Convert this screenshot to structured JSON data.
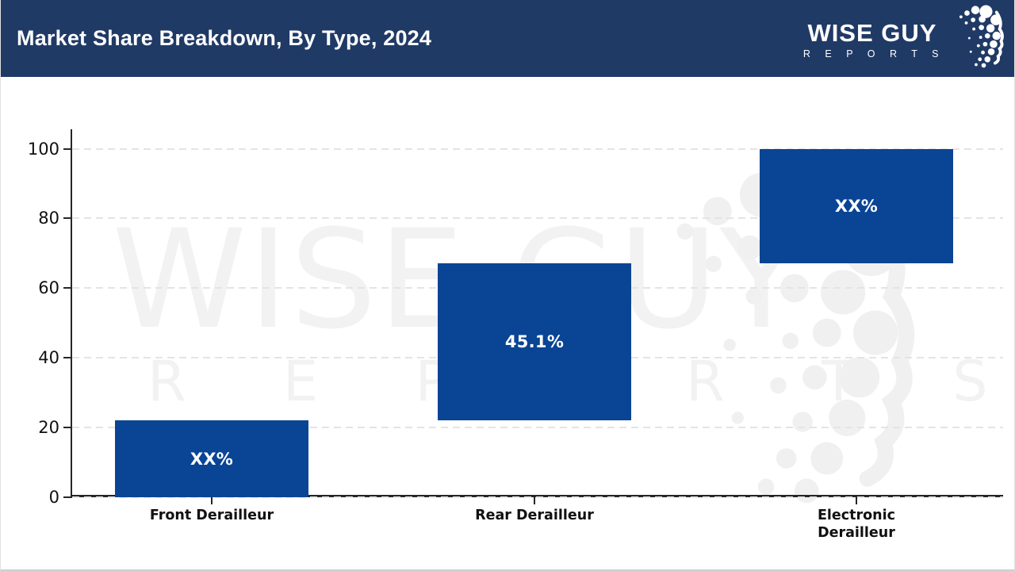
{
  "header": {
    "title": "Market Share Breakdown, By Type, 2024",
    "logo": {
      "name": "WISE GUY",
      "sub": "R E P O R T S"
    }
  },
  "watermark": {
    "line1": "WISE GUY",
    "line2": "R E P O R T S"
  },
  "chart_data": {
    "type": "bar",
    "variant": "stacked-waterfall-floating-bars",
    "title": "Market Share Breakdown, By Type, 2024",
    "categories": [
      "Front Derailleur",
      "Rear Derailleur",
      "Electronic\nDerailleur"
    ],
    "segments": [
      {
        "category": "Front Derailleur",
        "start": 0,
        "end": 22,
        "label": "XX%"
      },
      {
        "category": "Rear Derailleur",
        "start": 22,
        "end": 67.1,
        "label": "45.1%"
      },
      {
        "category": "Electronic Derailleur",
        "start": 67.1,
        "end": 100,
        "label": "XX%"
      }
    ],
    "values": [
      22,
      45.1,
      32.9
    ],
    "yticks": [
      0,
      20,
      40,
      60,
      80,
      100
    ],
    "ylim": [
      0,
      105.6
    ],
    "xlabel": "",
    "ylabel": "",
    "grid": "horizontal-dashed",
    "legend": "none",
    "bar_color": "#0a4494",
    "bar_label_color": "#ffffff",
    "axis_color": "#262626",
    "grid_color": "#e4e4e4"
  },
  "colors": {
    "header_bg": "#203a66",
    "header_text": "#ffffff",
    "bar": "#0a4494",
    "watermark": "#f2f2f2",
    "bottom_hairline": "#cfcfcf"
  }
}
